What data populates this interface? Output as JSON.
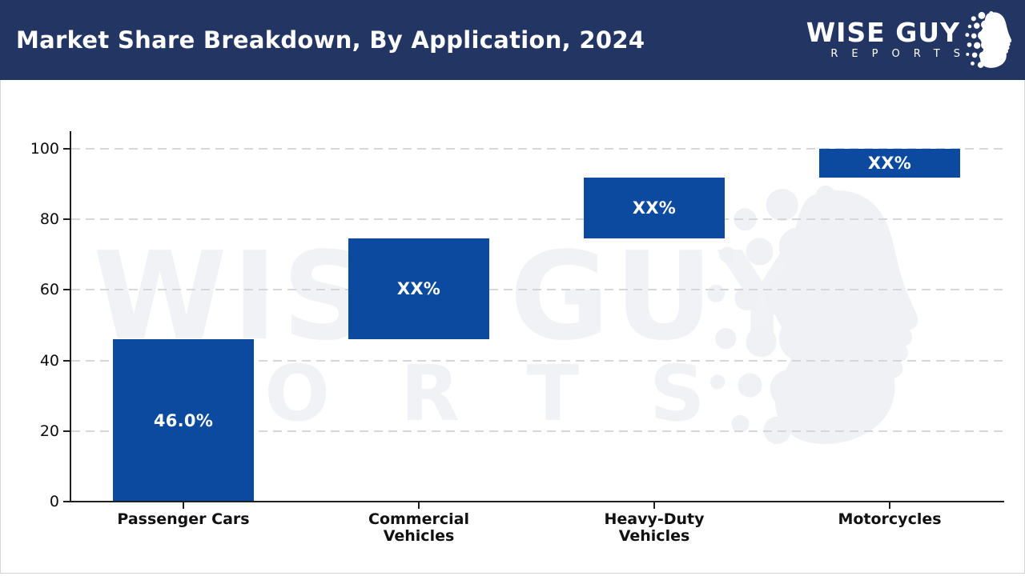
{
  "header": {
    "title": "Market Share Breakdown, By Application, 2024",
    "brand_name": "WISE GUY",
    "brand_subtitle": "REPORTS",
    "background_color": "#233563"
  },
  "watermark": {
    "line1": "WISE GUY",
    "line2": "PORTS",
    "color": "#f1f2f5"
  },
  "chart_data": {
    "type": "bar",
    "subtype": "waterfall",
    "title": "Market Share Breakdown, By Application, 2024",
    "categories": [
      "Passenger Cars",
      "Commercial Vehicles",
      "Heavy-Duty Vehicles",
      "Motorcycles"
    ],
    "category_label_lines": [
      [
        "Passenger Cars"
      ],
      [
        "Commercial",
        "Vehicles"
      ],
      [
        "Heavy-Duty",
        "Vehicles"
      ],
      [
        "Motorcycles"
      ]
    ],
    "segments": [
      {
        "category": "Passenger Cars",
        "start": 0.0,
        "end": 46.0,
        "value": 46.0,
        "label": "46.0%"
      },
      {
        "category": "Commercial Vehicles",
        "start": 46.0,
        "end": 74.5,
        "value": 28.5,
        "label": "XX%"
      },
      {
        "category": "Heavy-Duty Vehicles",
        "start": 74.5,
        "end": 91.8,
        "value": 17.3,
        "label": "XX%"
      },
      {
        "category": "Motorcycles",
        "start": 91.8,
        "end": 100.0,
        "value": 8.2,
        "label": "XX%"
      }
    ],
    "xlabel": "",
    "ylabel": "",
    "ylim": [
      0,
      100
    ],
    "yticks": [
      0,
      20,
      40,
      60,
      80,
      100
    ],
    "grid": "horizontal-dashed",
    "legend": "none",
    "bar_color": "#0b4a9e",
    "bar_label_color": "#ffffff",
    "axis_color": "#1f1f1f",
    "grid_color": "#d7d7d7"
  }
}
